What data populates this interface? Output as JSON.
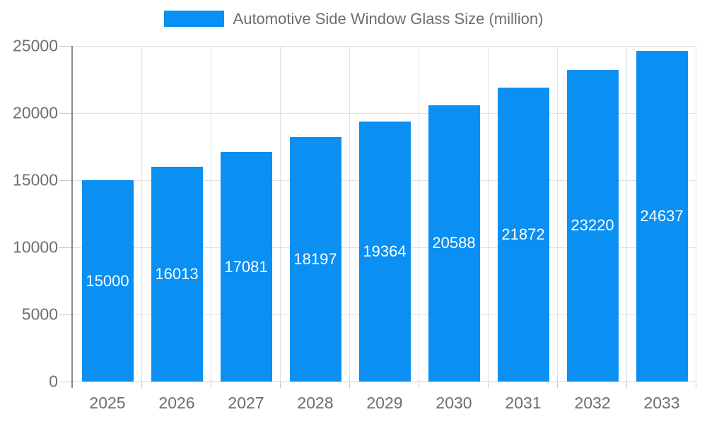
{
  "legend": {
    "title": "Automotive Side Window Glass Size (million)"
  },
  "colors": {
    "bar": "#0a8ff2",
    "grid": "#e0e0e0",
    "axis_line": "#8a8a8a",
    "tick": "#c8c8c8",
    "axis_text": "#6e6e6e",
    "legend_text": "#6e6e6e",
    "bar_label_text": "#ffffff",
    "background": "#ffffff"
  },
  "chart_data": {
    "type": "bar",
    "categories": [
      "2025",
      "2026",
      "2027",
      "2028",
      "2029",
      "2030",
      "2031",
      "2032",
      "2033"
    ],
    "values": [
      15000,
      16013,
      17081,
      18197,
      19364,
      20588,
      21872,
      23220,
      24637
    ],
    "title": "Automotive Side Window Glass Size (million)",
    "xlabel": "",
    "ylabel": "",
    "ylim": [
      0,
      25000
    ],
    "yticks": [
      0,
      5000,
      10000,
      15000,
      20000,
      25000
    ],
    "grid": "horizontal-and-vertical",
    "legend_position": "top",
    "bar_label_position": "inside-middle"
  }
}
